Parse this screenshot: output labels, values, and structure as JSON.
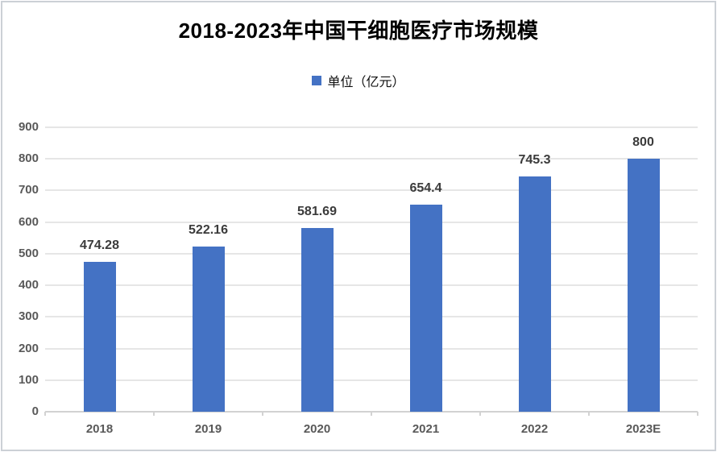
{
  "chart_data": {
    "type": "bar",
    "title": "2018-2023年中国干细胞医疗市场规模",
    "unit_legend": "单位（亿元）",
    "categories": [
      "2018",
      "2019",
      "2020",
      "2021",
      "2022",
      "2023E"
    ],
    "values": [
      474.28,
      522.16,
      581.69,
      654.4,
      745.3,
      800
    ],
    "value_labels": [
      "474.28",
      "522.16",
      "581.69",
      "654.4",
      "745.3",
      "800"
    ],
    "yticks": [
      0,
      100,
      200,
      300,
      400,
      500,
      600,
      700,
      800,
      900
    ],
    "ylim": [
      0,
      900
    ],
    "xlabel": "",
    "ylabel": "",
    "grid": true,
    "legend_position": "top-center",
    "data_labels": "above-bars"
  },
  "colors": {
    "bar": "#4472c4",
    "gridline": "#e6e6e6",
    "axis_line": "#d2d2d2",
    "axis_label": "#595959",
    "data_label": "#3b3b3b",
    "title": "#000000",
    "frame_border": "#ccd0d6"
  }
}
